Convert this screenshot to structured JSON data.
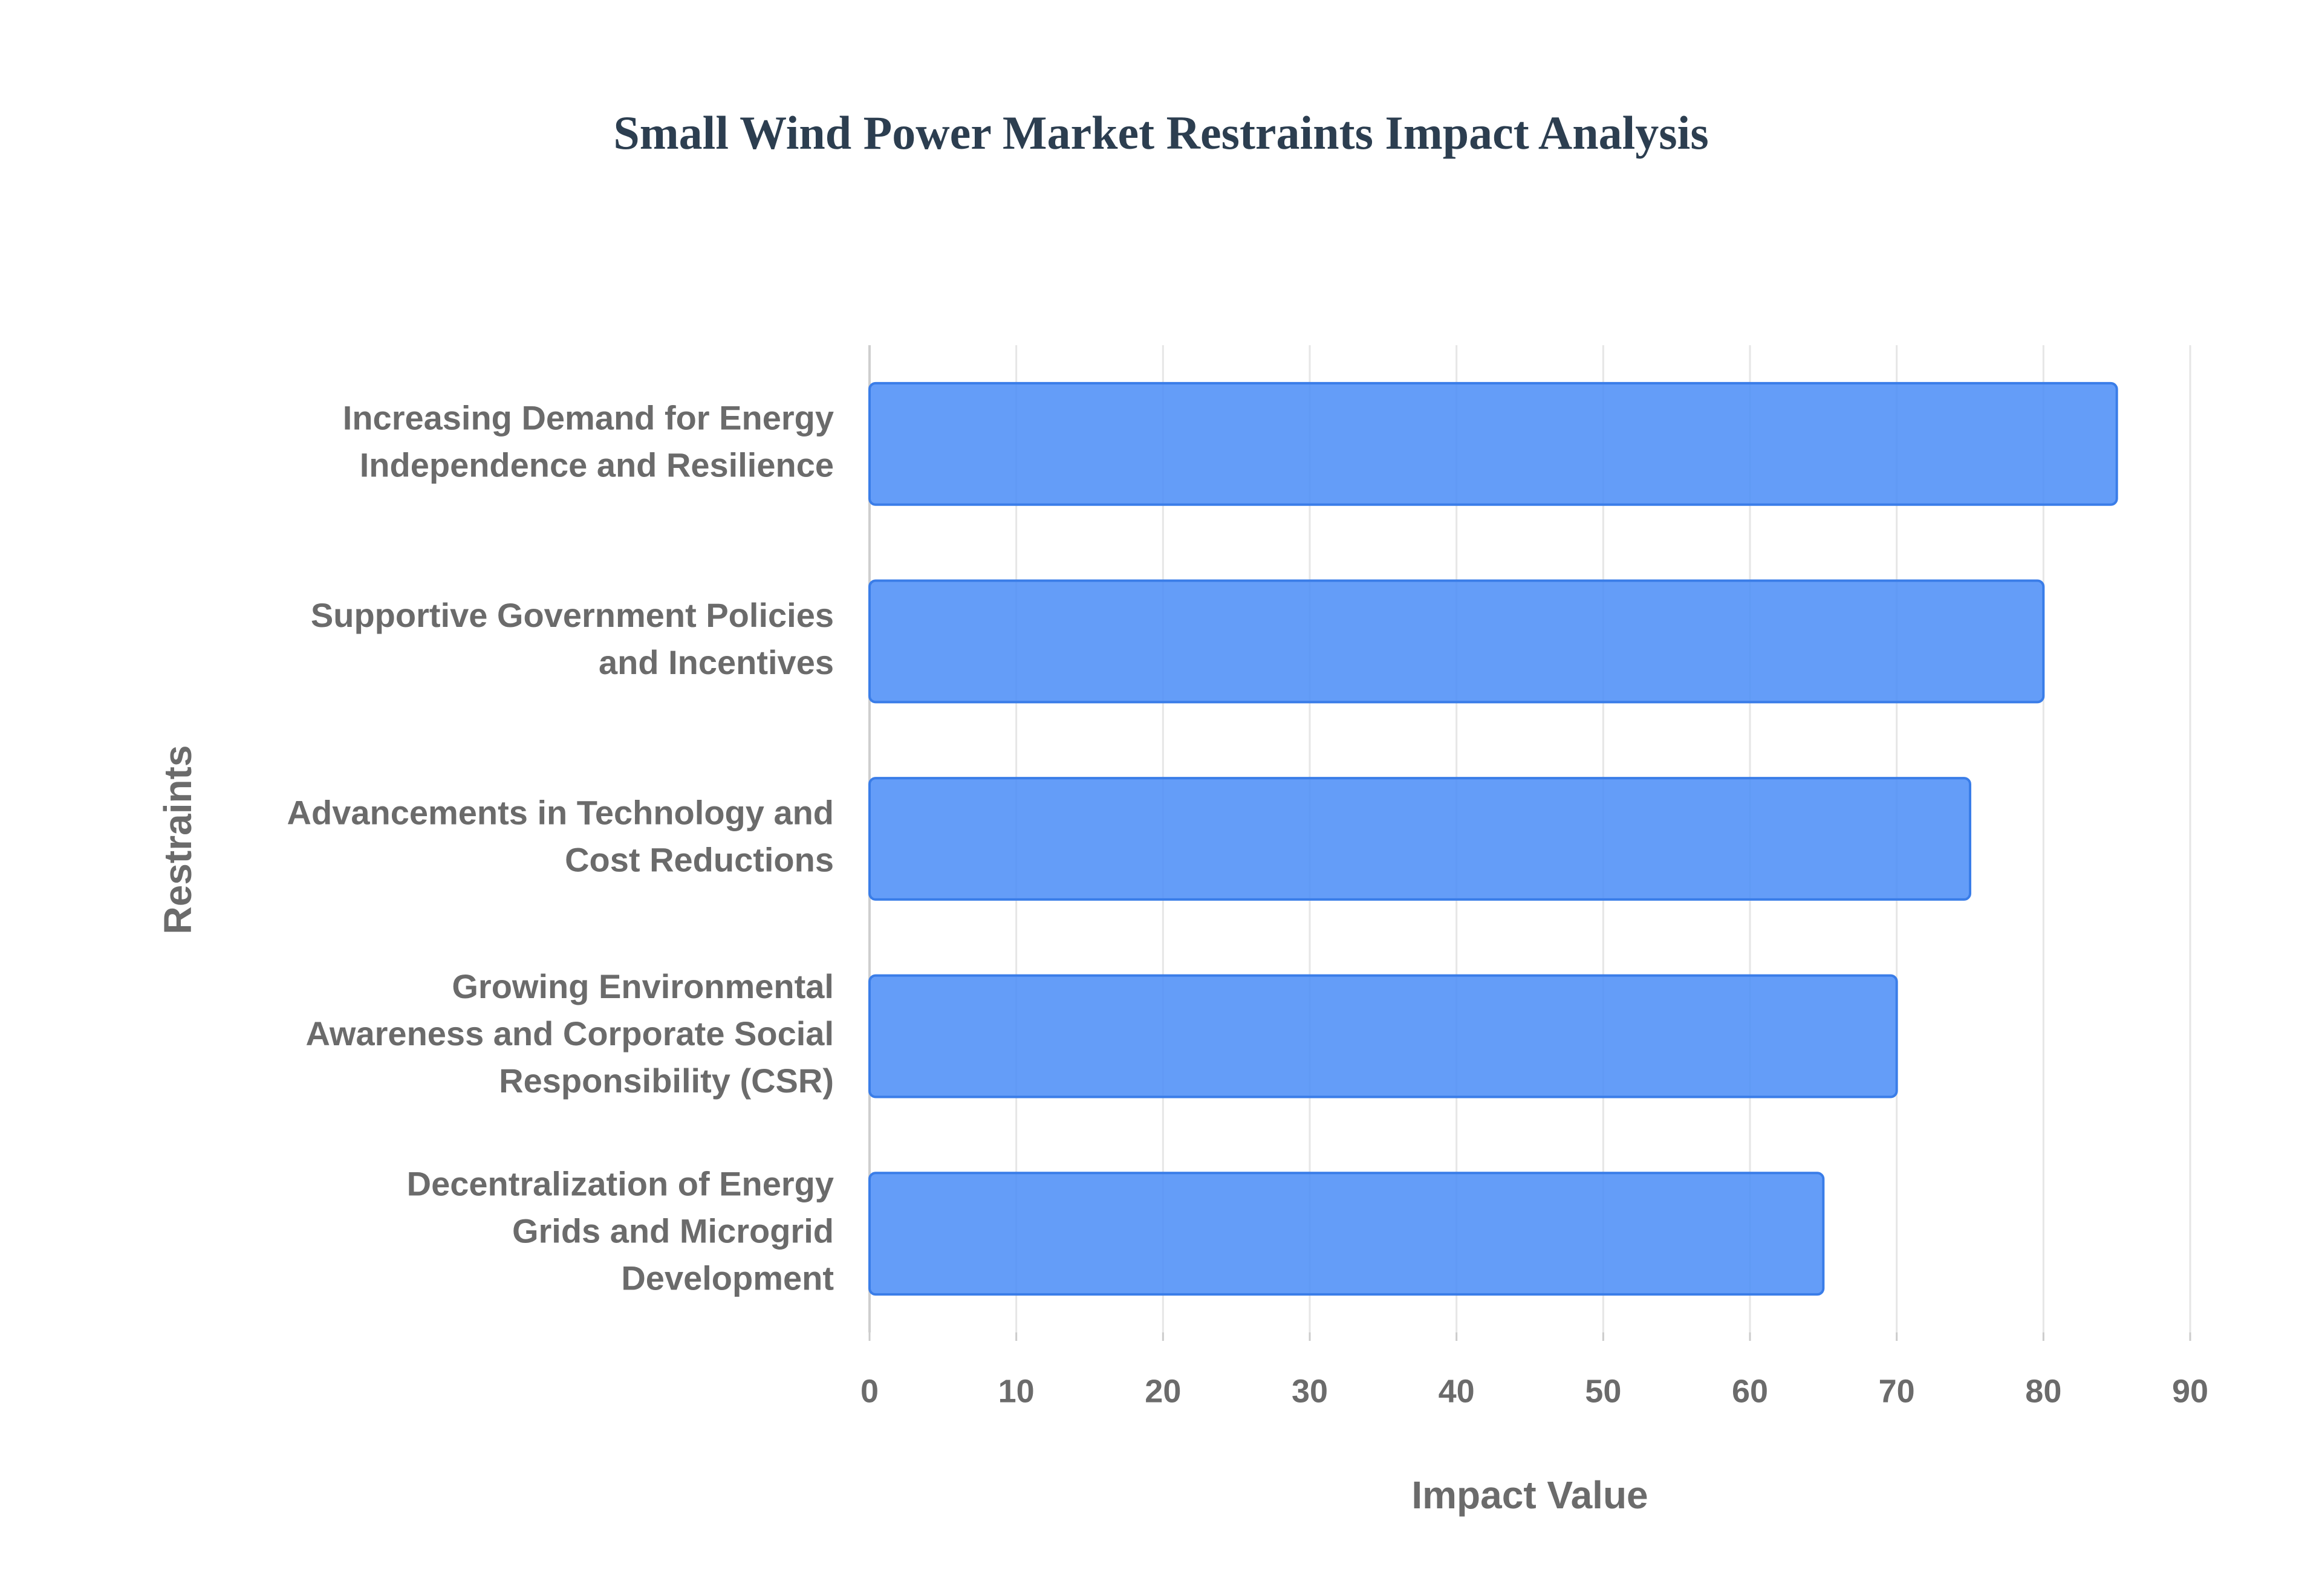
{
  "chart_data": {
    "type": "bar",
    "orientation": "horizontal",
    "title": "Small Wind Power Market Restraints Impact Analysis",
    "x_label": "Impact Value",
    "y_label": "Restraints",
    "categories": [
      "Increasing Demand for Energy Independence and Resilience",
      "Supportive Government Policies and Incentives",
      "Advancements in Technology and Cost Reductions",
      "Growing Environmental Awareness and Corporate Social Responsibility (CSR)",
      "Decentralization of Energy Grids and Microgrid Development"
    ],
    "values": [
      85,
      80,
      75,
      70,
      65
    ],
    "color": "#4f8ff7",
    "xlim": [
      0,
      90
    ],
    "xticks": [
      0,
      10,
      20,
      30,
      40,
      50,
      60,
      70,
      80,
      90
    ],
    "grid": true
  }
}
